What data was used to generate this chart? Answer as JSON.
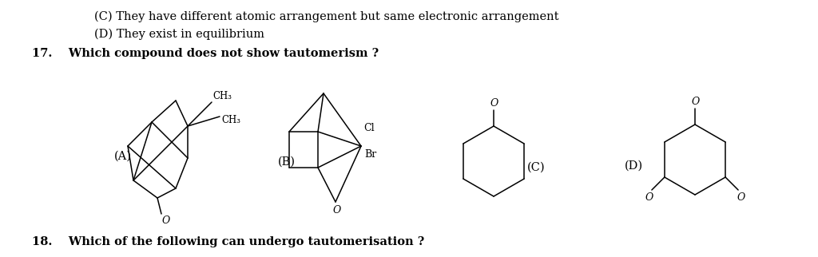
{
  "bg_color": "#ffffff",
  "text_color": "#000000",
  "line1": "(C) They have different atomic arrangement but same electronic arrangement",
  "line2": "(D) They exist in equilibrium",
  "q17": "17.    Which compound does not show tautomerism ?",
  "q18": "18.    Which of the following can undergo tautomerisation ?",
  "label_A": "(A)",
  "label_B": "(B)",
  "label_C": "(C)",
  "label_D": "(D)",
  "font_size_text": 10.5,
  "font_size_label": 10.5,
  "font_size_atom": 9.0,
  "font_size_ch3": 8.5
}
